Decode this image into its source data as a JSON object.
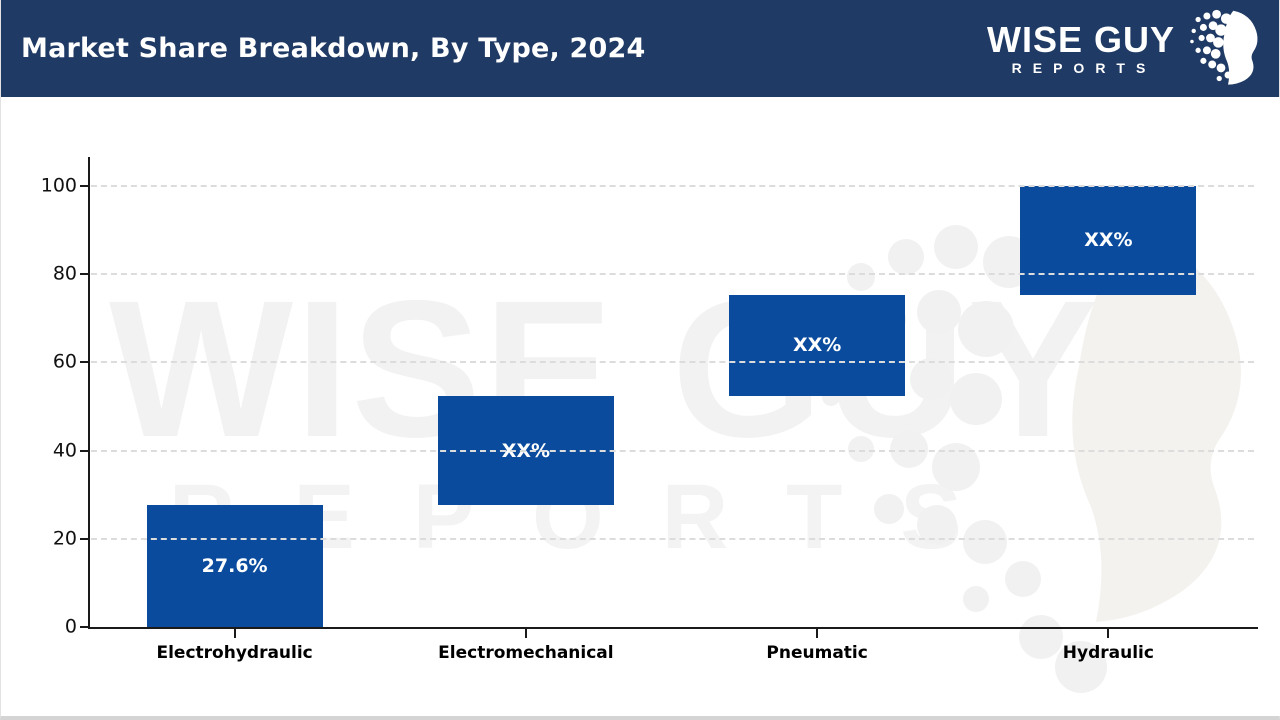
{
  "header": {
    "title": "Market Share Breakdown, By Type, 2024",
    "bg_color": "#1f3a64",
    "logo": {
      "line1": "WISE GUY",
      "line2": "REPORTS"
    }
  },
  "watermark": {
    "line1": "WISE GUY",
    "line2": "REPORTS"
  },
  "chart_data": {
    "type": "bar",
    "subtype": "floating-segment-breakdown",
    "title": "Market Share Breakdown, By Type, 2024",
    "categories": [
      "Electrohydraulic",
      "Electromechanical",
      "Pneumatic",
      "Hydraulic"
    ],
    "segments": [
      {
        "category": "Electrohydraulic",
        "start": 0,
        "end": 27.6,
        "label": "27.6%"
      },
      {
        "category": "Electromechanical",
        "start": 27.6,
        "end": 52.4,
        "label": "XX%"
      },
      {
        "category": "Pneumatic",
        "start": 52.4,
        "end": 75.3,
        "label": "XX%"
      },
      {
        "category": "Hydraulic",
        "start": 75.3,
        "end": 100,
        "label": "XX%"
      }
    ],
    "xlabel": "",
    "ylabel": "",
    "yticks": [
      0,
      20,
      40,
      60,
      80,
      100
    ],
    "ylim": [
      0,
      107
    ],
    "grid": {
      "axis": "y",
      "style": "dashed",
      "color": "#dcdcdc",
      "above_bars": true
    },
    "legend": "none",
    "bar_color": "#0a4b9d",
    "bar_label_color": "#ffffff",
    "axis_color": "#1a1a1a"
  }
}
